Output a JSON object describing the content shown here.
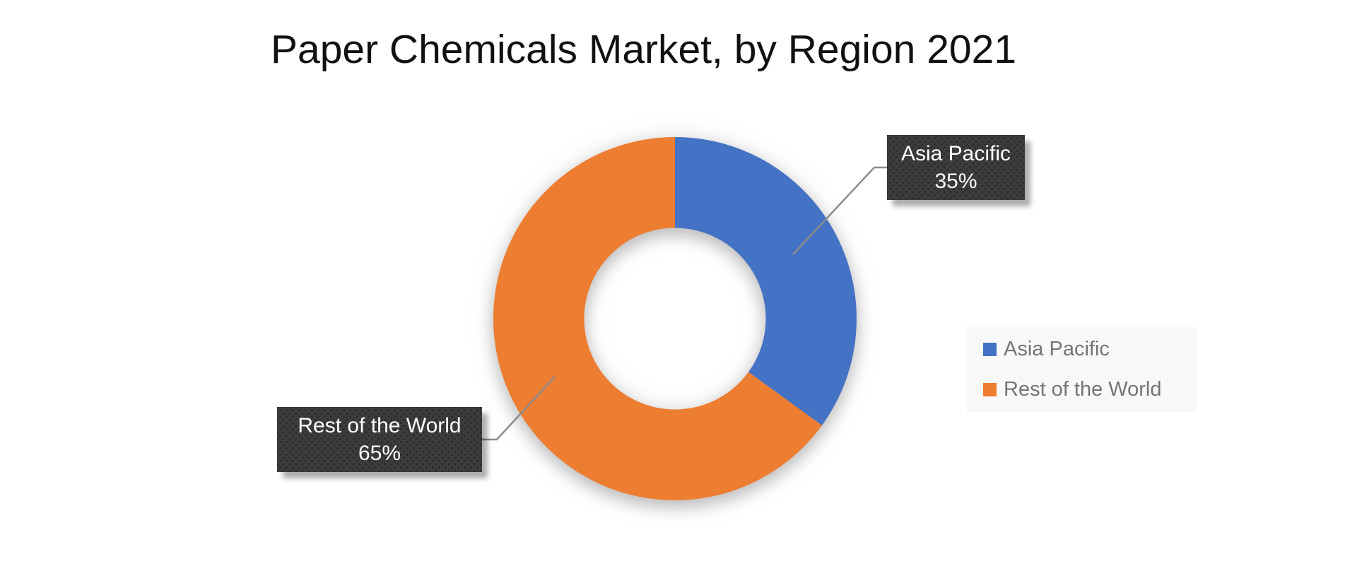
{
  "chart_data": {
    "type": "pie",
    "subtype": "doughnut",
    "title": "Paper Chemicals Market, by Region 2021",
    "categories": [
      "Asia Pacific",
      "Rest of the World"
    ],
    "values": [
      35,
      65
    ],
    "unit": "%",
    "colors": [
      "#4472C4",
      "#ED7D31"
    ],
    "start_angle_deg": 0,
    "direction": "clockwise",
    "hole_ratio": 0.5,
    "grid": false,
    "legend_position": "middle-right",
    "data_labels": [
      {
        "category": "Asia Pacific",
        "value": "35%"
      },
      {
        "category": "Rest of the World",
        "value": "65%"
      }
    ]
  },
  "legend": {
    "items": [
      {
        "label": "Asia Pacific",
        "color": "#4472C4"
      },
      {
        "label": "Rest of the World",
        "color": "#ED7D31"
      }
    ]
  },
  "style": {
    "background": "#FFFFFF",
    "title_text": "#111111",
    "series_blue": "#4472C4",
    "series_orange": "#ED7D31",
    "callout_bg": "#3C3C3C",
    "callout_text": "#FFFFFF",
    "leader_line": "#8C8C8C",
    "legend_bg": "#F8F8F8",
    "legend_text": "#757575"
  }
}
